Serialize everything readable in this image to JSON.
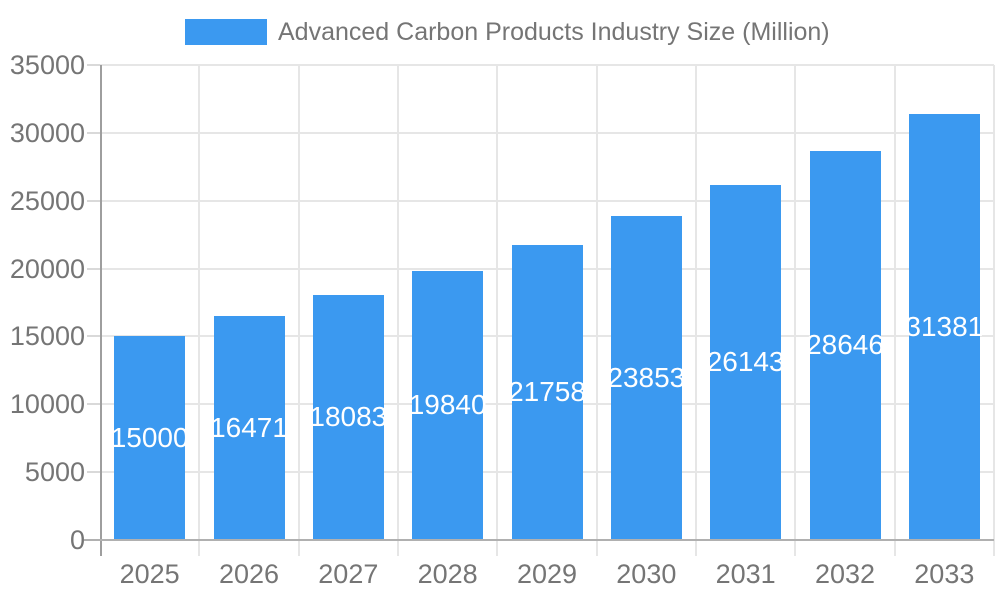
{
  "legend": {
    "label": "Advanced Carbon Products Industry Size (Million)"
  },
  "chart_data": {
    "type": "bar",
    "title": "Advanced Carbon Products Industry Size (Million)",
    "categories": [
      "2025",
      "2026",
      "2027",
      "2028",
      "2029",
      "2030",
      "2031",
      "2032",
      "2033"
    ],
    "values": [
      15000,
      16471,
      18083,
      19840,
      21758,
      23853,
      26143,
      28646,
      31381
    ],
    "series": [
      {
        "name": "Advanced Carbon Products Industry Size (Million)",
        "values": [
          15000,
          16471,
          18083,
          19840,
          21758,
          23853,
          26143,
          28646,
          31381
        ]
      }
    ],
    "yticks": [
      0,
      5000,
      10000,
      15000,
      20000,
      25000,
      30000,
      35000
    ],
    "ylim": [
      0,
      35000
    ],
    "xlabel": "",
    "ylabel": "",
    "grid": true,
    "value_labels": "inside-middle",
    "legend_position": "top"
  },
  "colors": {
    "bar": "#3B99F0",
    "grid": "#E6E6E6",
    "axis_line": "#9E9E9E",
    "baseline": "#B0B0B0",
    "tick": "#D9D9D9",
    "text": "#757575",
    "value_label": "#FFFFFF",
    "background": "#FFFFFF"
  }
}
